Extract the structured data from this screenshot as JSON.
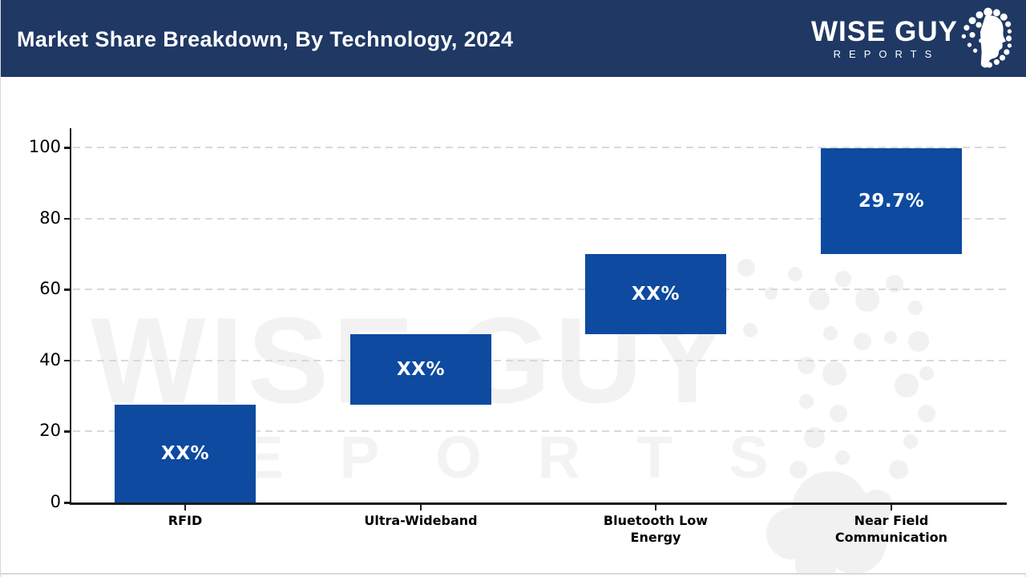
{
  "page": {
    "background": "#ffffff",
    "frame_border_color": "#d9d9d9"
  },
  "header": {
    "background": "#1F3864",
    "title": "Market Share Breakdown, By Technology, 2024",
    "logo": {
      "line1": "WISE GUY",
      "line2": "REPORTS"
    }
  },
  "watermark": {
    "line1": "WISE GUY",
    "line2": "REPORTS"
  },
  "chart_data": {
    "type": "bar",
    "subtype": "floating-segment stacked breakdown (waterfall-style)",
    "title": "Market Share Breakdown, By Technology, 2024",
    "categories": [
      "RFID",
      "Ultra-Wideband",
      "Bluetooth Low\nEnergy",
      "Near Field\nCommunication"
    ],
    "series": [
      {
        "name": "Market share (%)",
        "segments": [
          {
            "category": "RFID",
            "from": 0,
            "to": 27.6,
            "label": "XX%"
          },
          {
            "category": "Ultra-Wideband",
            "from": 27.6,
            "to": 47.4,
            "label": "XX%"
          },
          {
            "category": "Bluetooth Low Energy",
            "from": 47.4,
            "to": 70,
            "label": "XX%"
          },
          {
            "category": "Near Field Communication",
            "from": 70,
            "to": 99.7,
            "label": "29.7%"
          }
        ]
      }
    ],
    "xlabel": "",
    "ylabel": "",
    "ylim": [
      0,
      100
    ],
    "yticks": [
      0,
      20,
      40,
      60,
      80,
      100
    ],
    "grid": "horizontal-dashed",
    "legend": "none",
    "bar_color": "#0D4AA0",
    "bar_label_color": "#ffffff",
    "axis_color": "#1a1a1a",
    "grid_color": "#d9d9d9"
  }
}
